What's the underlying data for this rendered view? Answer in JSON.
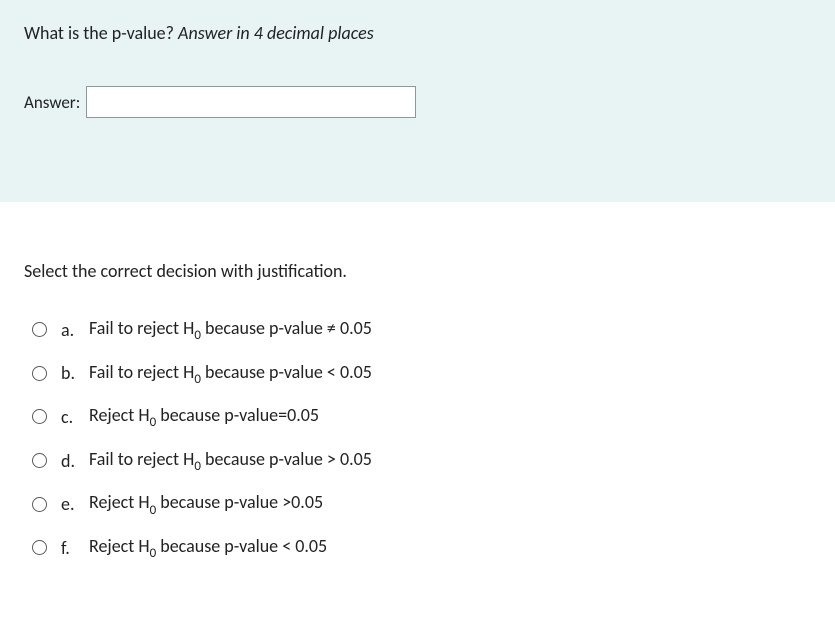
{
  "q1": {
    "prompt_text": "What is the p-value?  ",
    "hint_text": "Answer in 4 decimal places",
    "answer_label": "Answer:",
    "answer_value": ""
  },
  "q2": {
    "prompt_text": "Select the correct decision with justification.",
    "options": [
      {
        "letter": "a.",
        "pre": "Fail to reject H",
        "sub": "0",
        "post": " because p-value ≠ 0.05"
      },
      {
        "letter": "b.",
        "pre": "Fail to reject H",
        "sub": "0",
        "post": " because p-value < 0.05"
      },
      {
        "letter": "c.",
        "pre": "Reject H",
        "sub": "0",
        "post": " because p-value=0.05"
      },
      {
        "letter": "d.",
        "pre": " Fail to reject H",
        "sub": "0",
        "post": " because p-value > 0.05"
      },
      {
        "letter": "e.",
        "pre": "Reject H",
        "sub": "0",
        "post": " because p-value >0.05"
      },
      {
        "letter": "f.",
        "pre": "Reject H",
        "sub": "0",
        "post": " because p-value < 0.05"
      }
    ]
  },
  "colors": {
    "panel_bg": "#e8f4f4",
    "text": "#222222",
    "input_border": "#8a9a9a",
    "radio_border": "#5a5a5a"
  }
}
